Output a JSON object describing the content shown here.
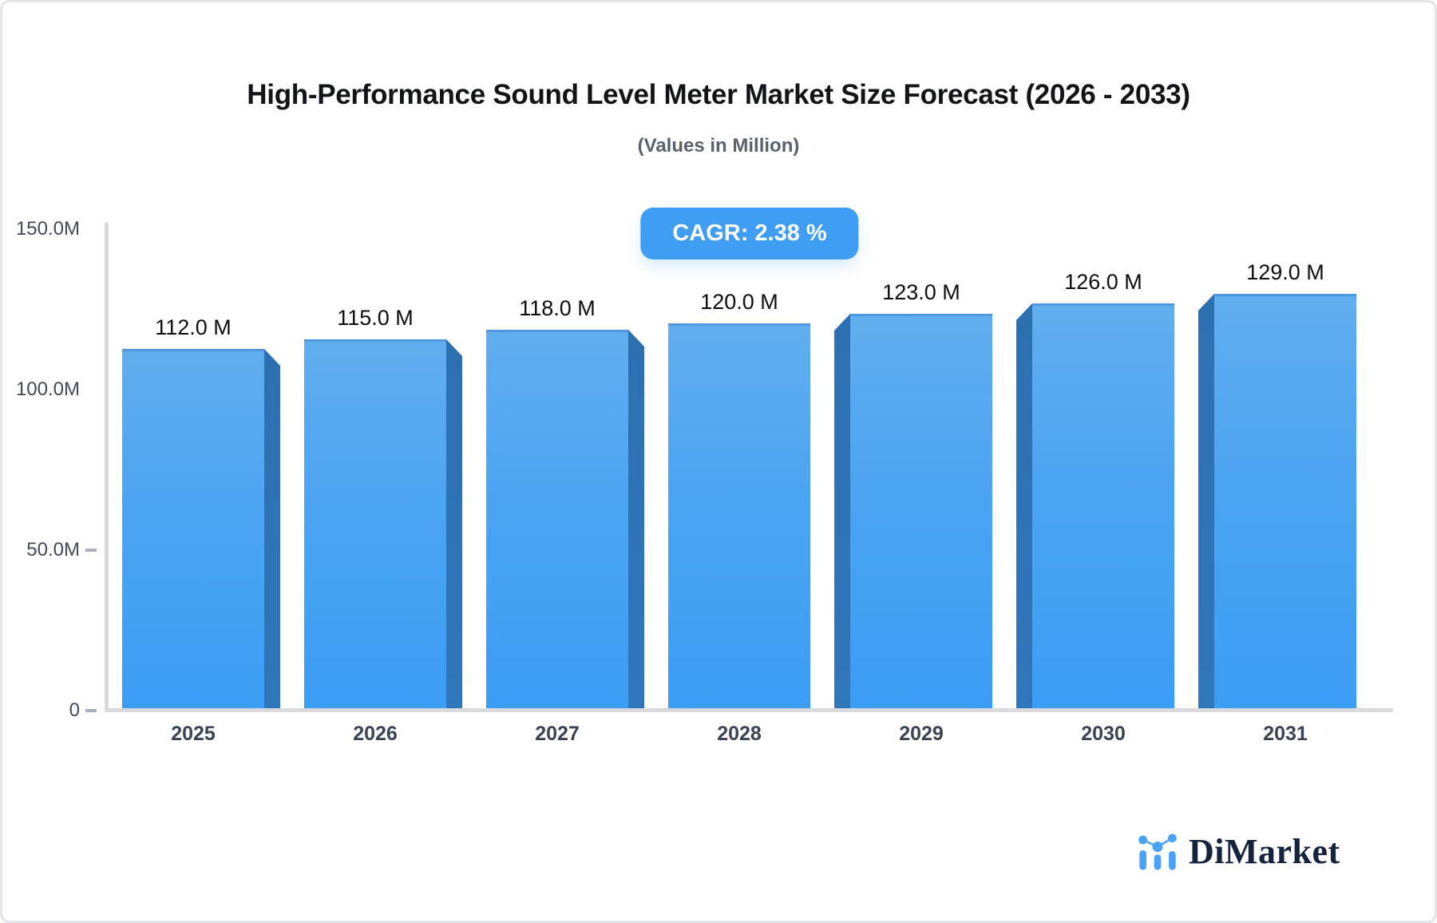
{
  "title": "High-Performance Sound Level Meter Market Size Forecast (2026 - 2033)",
  "subtitle": "(Values in Million)",
  "cagr_badge": {
    "label": "CAGR: 2.38 %",
    "background": "#3f9df3",
    "text_color": "#ffffff"
  },
  "chart_data": {
    "type": "bar",
    "categories": [
      "2025",
      "2026",
      "2027",
      "2028",
      "2029",
      "2030",
      "2031"
    ],
    "values": [
      112.0,
      115.0,
      118.0,
      120.0,
      123.0,
      126.0,
      129.0
    ],
    "value_labels": [
      "112.0 M",
      "115.0 M",
      "118.0 M",
      "120.0 M",
      "123.0 M",
      "126.0 M",
      "129.0 M"
    ],
    "unit": "Million",
    "ylim": [
      0,
      150
    ],
    "grid": "off",
    "legend": "none",
    "y_axis": {
      "ticks": [
        {
          "label": "150.0M",
          "value": 150,
          "dash": false
        },
        {
          "label": "100.0M",
          "value": 100,
          "dash": false
        },
        {
          "label": "50.0M",
          "value": 50,
          "dash": true
        },
        {
          "label": "0",
          "value": 0,
          "dash": true
        }
      ]
    },
    "colors": {
      "bar_face_top": "#61aeef",
      "bar_face_bottom": "#3c9df5",
      "bar_face_edge": "#4f97de",
      "bar_side": "#3076ba",
      "axis": "#d8dade",
      "tick_text": "#414a5b",
      "category_text": "#3a4354",
      "value_text": "#0c0d0f"
    }
  },
  "logo": {
    "text": "DiMarket",
    "icon": "bar-line-chart-logo-icon",
    "text_color": "#16233f",
    "icon_color": "#49a2f6"
  }
}
